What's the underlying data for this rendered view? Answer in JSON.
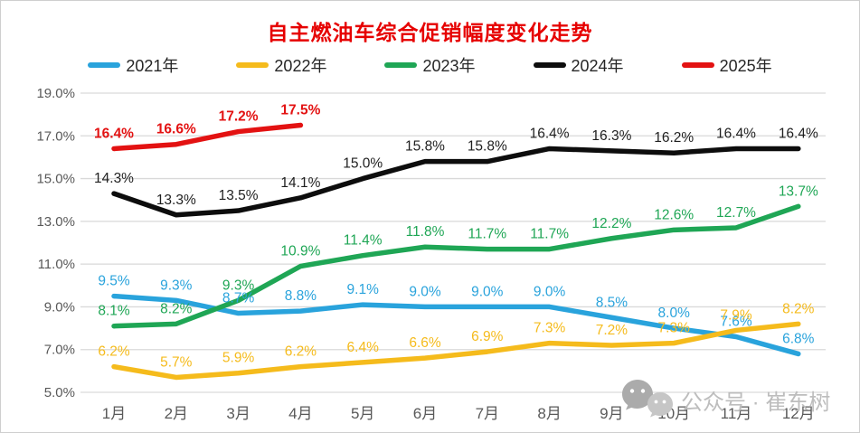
{
  "chart_data": {
    "type": "line",
    "title": "自主燃油车综合促销幅度变化走势",
    "categories": [
      "1月",
      "2月",
      "3月",
      "4月",
      "5月",
      "6月",
      "7月",
      "8月",
      "9月",
      "10月",
      "11月",
      "12月"
    ],
    "series": [
      {
        "name": "2021年",
        "color": "#29A3DC",
        "values": [
          9.5,
          9.3,
          8.7,
          8.8,
          9.1,
          9.0,
          9.0,
          9.0,
          8.5,
          8.0,
          7.6,
          6.8
        ]
      },
      {
        "name": "2022年",
        "color": "#F5BB1C",
        "values": [
          6.2,
          5.7,
          5.9,
          6.2,
          6.4,
          6.6,
          6.9,
          7.3,
          7.2,
          7.3,
          7.9,
          8.2
        ]
      },
      {
        "name": "2023年",
        "color": "#1FA655",
        "values": [
          8.1,
          8.2,
          9.3,
          10.9,
          11.4,
          11.8,
          11.7,
          11.7,
          12.2,
          12.6,
          12.7,
          13.7
        ]
      },
      {
        "name": "2024年",
        "color": "#0D0D0D",
        "label_color": "#1F1F1F",
        "values": [
          14.3,
          13.3,
          13.5,
          14.1,
          15.0,
          15.8,
          15.8,
          16.4,
          16.3,
          16.2,
          16.4,
          16.4
        ]
      },
      {
        "name": "2025年",
        "color": "#E31212",
        "bold_labels": true,
        "values": [
          16.4,
          16.6,
          17.2,
          17.5
        ]
      }
    ],
    "ylim": [
      5,
      19
    ],
    "yticks": [
      5,
      7,
      9,
      11,
      13,
      15,
      17,
      19
    ],
    "ytick_suffix": "%",
    "grid": true,
    "legend_position": "top",
    "data_labels": true,
    "grid_color": "#D9D9D9",
    "axis_text_color": "#595959",
    "title_color": "#E60000"
  },
  "watermark": {
    "text": "公众号 · 崔东树"
  }
}
